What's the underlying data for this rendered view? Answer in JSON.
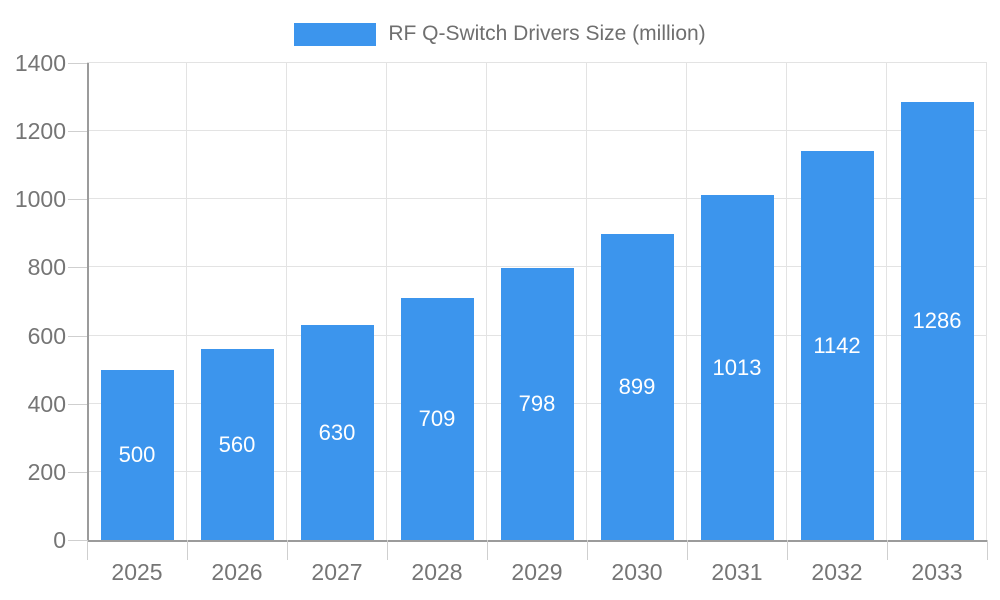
{
  "legend": {
    "label": "RF Q-Switch Drivers Size (million)"
  },
  "chart_data": {
    "type": "bar",
    "title": "RF Q-Switch Drivers Size (million)",
    "categories": [
      "2025",
      "2026",
      "2027",
      "2028",
      "2029",
      "2030",
      "2031",
      "2032",
      "2033"
    ],
    "values": [
      500,
      560,
      630,
      709,
      798,
      899,
      1013,
      1142,
      1286
    ],
    "xlabel": "",
    "ylabel": "",
    "ylim": [
      0,
      1400
    ],
    "yticks": [
      0,
      200,
      400,
      600,
      800,
      1000,
      1200,
      1400
    ],
    "grid": true,
    "legend_position": "top-center",
    "value_labels": "inside-center",
    "colors": {
      "bar": "#3C95ED",
      "value_label_text": "#FFFFFF",
      "axis_text": "#757575",
      "legend_text": "#6F6F6F",
      "grid_line": "#E3E3E3",
      "axis_line": "#9B9B9B",
      "tick_mark": "#CFCFCF",
      "background": "#FFFFFF"
    }
  }
}
